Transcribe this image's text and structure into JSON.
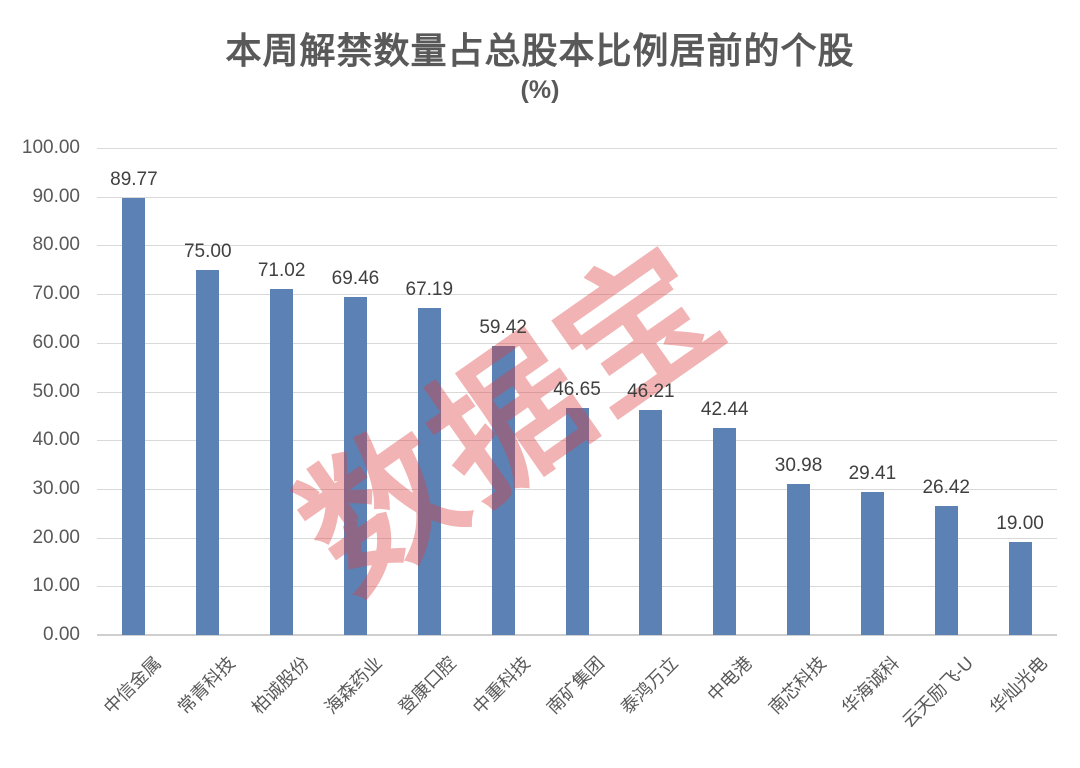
{
  "chart_data": {
    "type": "bar",
    "title": "本周解禁数量占总股本比例居前的个股",
    "subtitle": "(%)",
    "categories": [
      "中信金属",
      "常青科技",
      "柏诚股份",
      "海森药业",
      "登康口腔",
      "中重科技",
      "南矿集团",
      "泰鸿万立",
      "中电港",
      "南芯科技",
      "华海诚科",
      "云天励飞-U",
      "华灿光电"
    ],
    "values": [
      89.77,
      75.0,
      71.02,
      69.46,
      67.19,
      59.42,
      46.65,
      46.21,
      42.44,
      30.98,
      29.41,
      26.42,
      19.0
    ],
    "value_labels": [
      "89.77",
      "75.00",
      "71.02",
      "69.46",
      "67.19",
      "59.42",
      "46.65",
      "46.21",
      "42.44",
      "30.98",
      "29.41",
      "26.42",
      "19.00"
    ],
    "xlabel": "",
    "ylabel": "",
    "ylim": [
      0,
      100
    ],
    "ytick_step": 10,
    "ytick_labels": [
      "100.00",
      "90.00",
      "80.00",
      "70.00",
      "60.00",
      "50.00",
      "40.00",
      "30.00",
      "20.00",
      "10.00",
      "0.00"
    ],
    "grid": true,
    "legend_position": "none",
    "watermark": "数据宝"
  },
  "style": {
    "bar_color": "#5B81B5",
    "grid_color": "#D9D9D9",
    "axis_line_color": "#CFCFCF",
    "title_color": "#595959",
    "tick_label_color": "#595959",
    "value_label_color": "#404040",
    "watermark_color": "rgba(221,64,64,0.40)"
  }
}
